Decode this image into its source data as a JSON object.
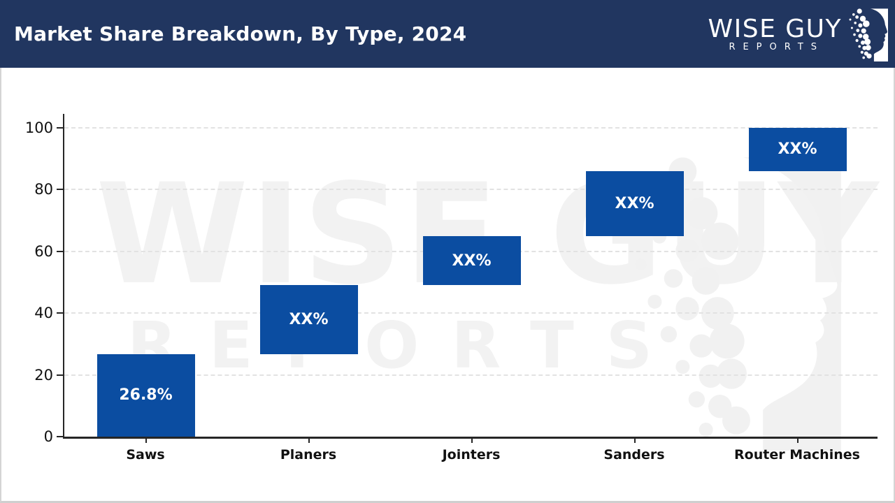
{
  "header": {
    "title": "Market Share Breakdown, By Type, 2024",
    "background_color": "#213660",
    "logo": {
      "line1": "WISE GUY",
      "line2": "REPORTS"
    }
  },
  "watermark": {
    "line1": "WISE GUY",
    "line2": "REPORTS"
  },
  "chart_data": {
    "type": "bar",
    "subtype": "waterfall",
    "title": "Market Share Breakdown, By Type, 2024",
    "categories": [
      "Saws",
      "Planers",
      "Jointers",
      "Sanders",
      "Router Machines"
    ],
    "segments": [
      {
        "category": "Saws",
        "start": 0,
        "end": 26.8,
        "label": "26.8%"
      },
      {
        "category": "Planers",
        "start": 26.8,
        "end": 49,
        "label": "XX%"
      },
      {
        "category": "Jointers",
        "start": 49,
        "end": 65,
        "label": "XX%"
      },
      {
        "category": "Sanders",
        "start": 65,
        "end": 86,
        "label": "XX%"
      },
      {
        "category": "Router Machines",
        "start": 86,
        "end": 100,
        "label": "XX%"
      }
    ],
    "y_ticks": [
      0,
      20,
      40,
      60,
      80,
      100
    ],
    "ylim": [
      0,
      105
    ],
    "xlabel": "",
    "ylabel": "",
    "legend": "none",
    "grid": "horizontal-dashed",
    "colors": {
      "bar": "#0b4da1",
      "bar_label": "#ffffff",
      "axis": "#262626",
      "tick_label": "#111111",
      "gridline": "#e2e2e2"
    }
  }
}
